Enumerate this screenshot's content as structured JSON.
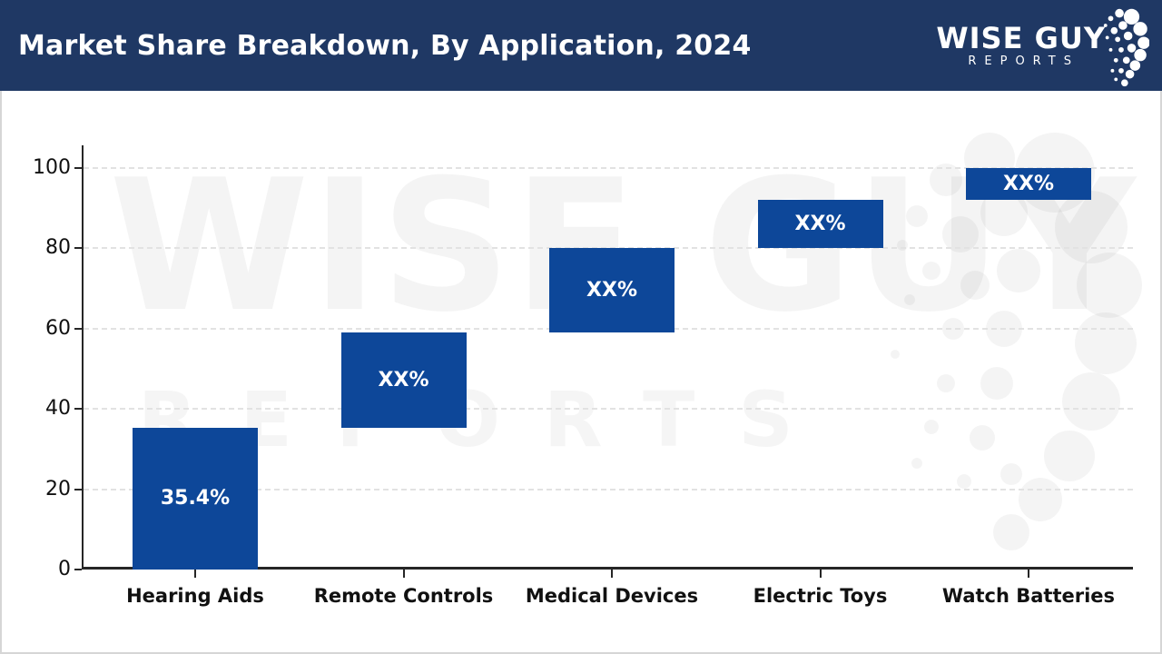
{
  "header": {
    "title": "Market Share Breakdown, By Application, 2024",
    "logo": {
      "line1": "WISE GUY",
      "line2": "REPORTS"
    }
  },
  "watermark": {
    "line1": "WISE GUY",
    "line2": "REPORTS"
  },
  "colors": {
    "header_bg": "#1f3864",
    "bar": "#0d4799",
    "grid": "#e2e2e2",
    "axis": "#262626",
    "bar_label": "#ffffff"
  },
  "chart_data": {
    "type": "bar",
    "subtype": "waterfall",
    "title": "Market Share Breakdown, By Application, 2024",
    "categories": [
      "Hearing Aids",
      "Remote Controls",
      "Medical Devices",
      "Electric Toys",
      "Watch Batteries"
    ],
    "series": [
      {
        "name": "Market Share",
        "segments": [
          {
            "category": "Hearing Aids",
            "start": 0,
            "end": 35.4,
            "label": "35.4%"
          },
          {
            "category": "Remote Controls",
            "start": 35.4,
            "end": 59,
            "label": "XX%"
          },
          {
            "category": "Medical Devices",
            "start": 59,
            "end": 80,
            "label": "XX%"
          },
          {
            "category": "Electric Toys",
            "start": 80,
            "end": 92,
            "label": "XX%"
          },
          {
            "category": "Watch Batteries",
            "start": 92,
            "end": 100,
            "label": "XX%"
          }
        ]
      }
    ],
    "xlabel": "",
    "ylabel": "",
    "ylim": [
      0,
      100
    ],
    "yticks": [
      0,
      20,
      40,
      60,
      80,
      100
    ],
    "grid": "horizontal-dashed",
    "legend": "none"
  }
}
